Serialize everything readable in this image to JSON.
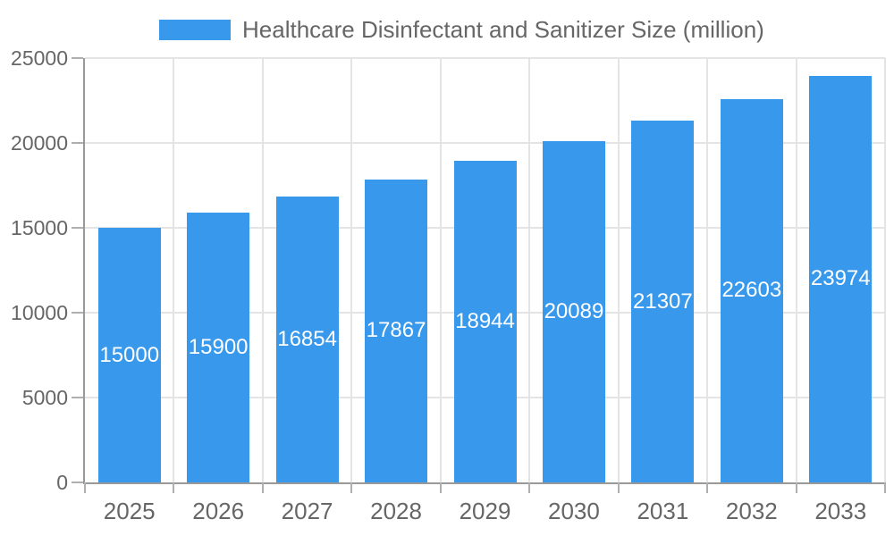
{
  "legend": {
    "label": "Healthcare Disinfectant and Sanitizer Size (million)"
  },
  "chart_data": {
    "type": "bar",
    "title": "Healthcare Disinfectant and Sanitizer Size (million)",
    "categories": [
      "2025",
      "2026",
      "2027",
      "2028",
      "2029",
      "2030",
      "2031",
      "2032",
      "2033"
    ],
    "values": [
      15000,
      15900,
      16854,
      17867,
      18944,
      20089,
      21307,
      22603,
      23974
    ],
    "xlabel": "",
    "ylabel": "",
    "ylim": [
      0,
      25000
    ],
    "y_ticks": [
      0,
      5000,
      10000,
      15000,
      20000,
      25000
    ],
    "grid": true,
    "legend_position": "top",
    "value_label_position": "inside-center",
    "colors": {
      "bar": "#3899EC",
      "axis_label": "#666666",
      "value_label": "#FFFFFF",
      "grid_line": "#E4E4E4",
      "axis_line": "#999999",
      "tick": "#AFAFAF"
    }
  }
}
